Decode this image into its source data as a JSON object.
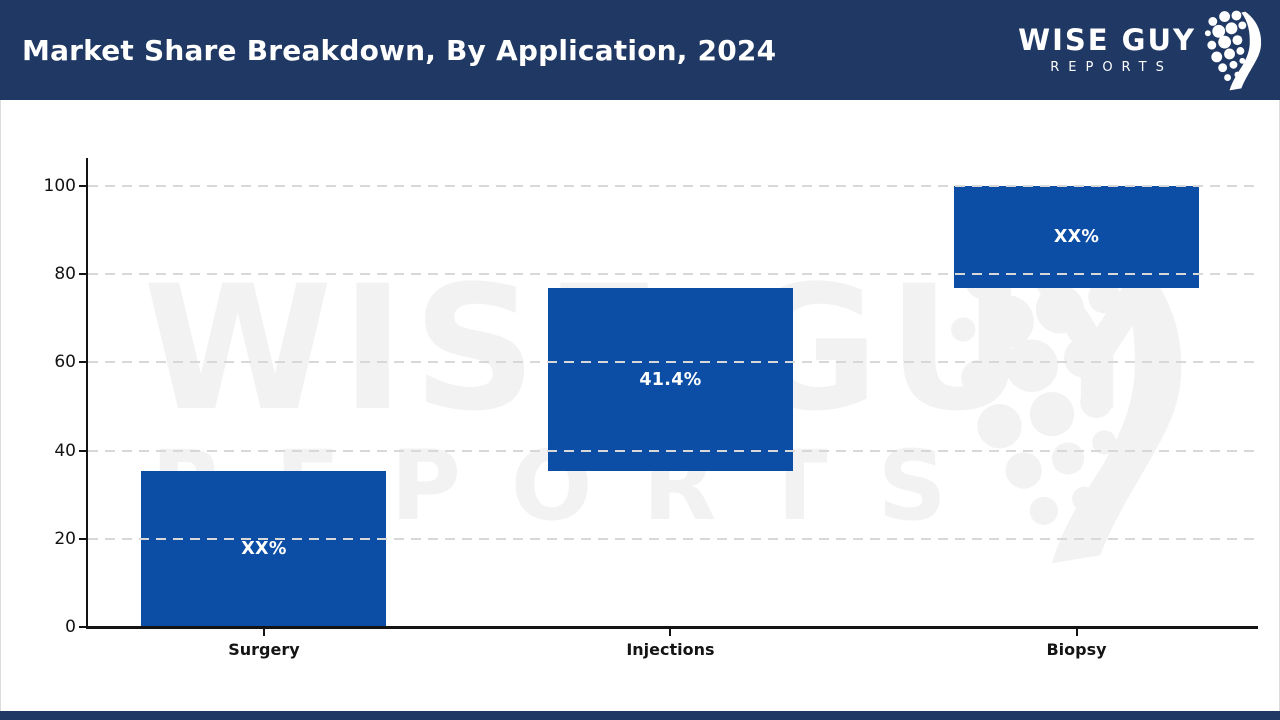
{
  "header": {
    "title": "Market Share Breakdown, By Application, 2024",
    "logo": {
      "wordmark": "WISE GUY",
      "reports": "REPORTS"
    }
  },
  "watermark": {
    "wordmark": "WISE GUY",
    "reports": "REPORTS"
  },
  "chart_data": {
    "type": "bar",
    "variant": "waterfall-stacked-percentage",
    "title": "Market Share Breakdown, By Application, 2024",
    "categories": [
      "Surgery",
      "Injections",
      "Biopsy"
    ],
    "segments": [
      {
        "category": "Surgery",
        "start": 0,
        "end": 35.4,
        "value": 35.4,
        "label": "XX%"
      },
      {
        "category": "Injections",
        "start": 35.4,
        "end": 76.8,
        "value": 41.4,
        "label": "41.4%"
      },
      {
        "category": "Biopsy",
        "start": 76.8,
        "end": 100,
        "value": 23.2,
        "label": "XX%"
      }
    ],
    "xlabel": "",
    "ylabel": "",
    "ylim": [
      0,
      100
    ],
    "yticks": [
      0,
      20,
      40,
      60,
      80,
      100
    ],
    "grid": "horizontal-dashed",
    "legend": "none",
    "bar_color": "#0c4da6",
    "bar_label_color": "#ffffff"
  },
  "colors": {
    "header_bg": "#1f3864",
    "footer_bg": "#1f3864",
    "title_text": "#ffffff",
    "axis": "#141414",
    "gridline": "#d8d8d8",
    "watermark": "#f2f2f2"
  }
}
